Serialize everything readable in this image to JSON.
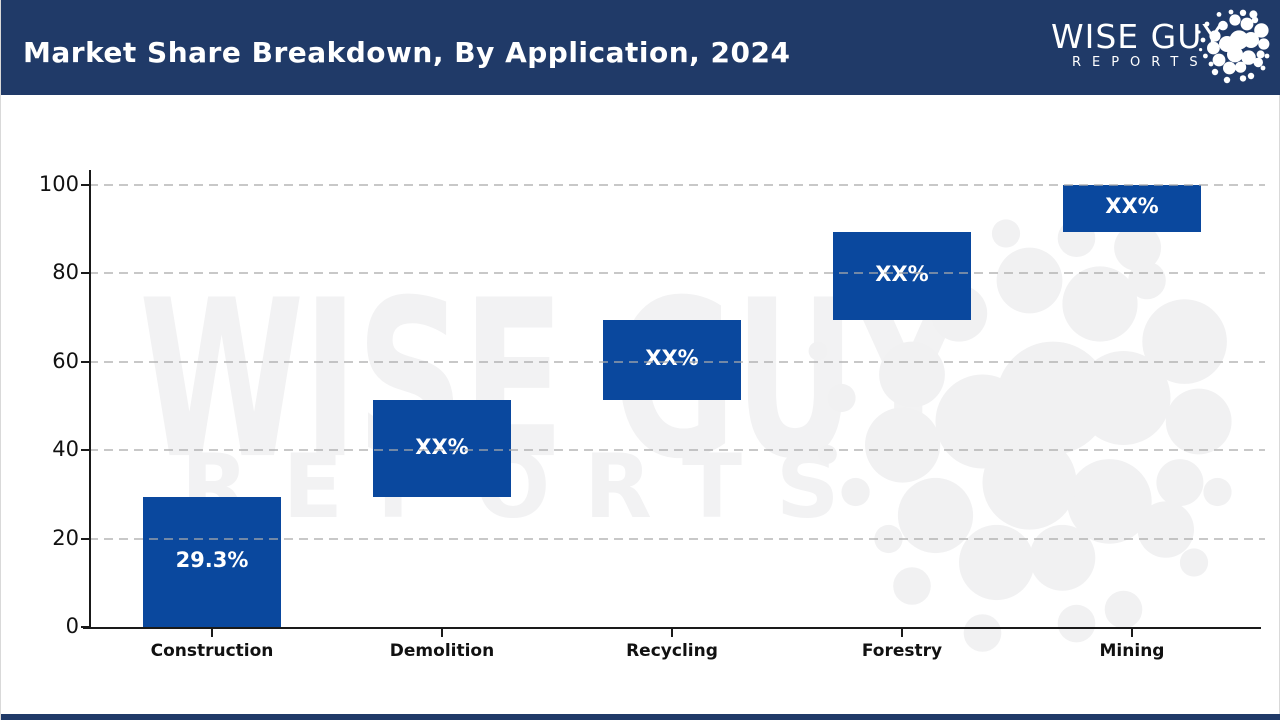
{
  "header": {
    "title": "Market Share Breakdown, By Application, 2024",
    "bg_color": "#203a68",
    "logo": {
      "line1": "WISE GUY",
      "line2": "REPORTS"
    }
  },
  "watermark": {
    "line1": "WISE GUY",
    "line2": "REPORTS"
  },
  "chart_data": {
    "type": "bar",
    "subtype": "waterfall",
    "title": "Market Share Breakdown, By Application, 2024",
    "categories": [
      "Construction",
      "Demolition",
      "Recycling",
      "Forestry",
      "Mining"
    ],
    "segments": [
      {
        "category": "Construction",
        "start": 0,
        "end": 29.3,
        "label": "29.3%"
      },
      {
        "category": "Demolition",
        "start": 29.3,
        "end": 51.4,
        "label": "XX%"
      },
      {
        "category": "Recycling",
        "start": 51.4,
        "end": 69.5,
        "label": "XX%"
      },
      {
        "category": "Forestry",
        "start": 69.5,
        "end": 89.4,
        "label": "XX%"
      },
      {
        "category": "Mining",
        "start": 89.4,
        "end": 100,
        "label": "XX%"
      }
    ],
    "yticks": [
      0,
      20,
      40,
      60,
      80,
      100
    ],
    "ylim": [
      0,
      105
    ],
    "xlabel": "",
    "ylabel": "",
    "bar_color": "#0a489e",
    "label_color": "#ffffff",
    "grid": "horizontal dashed, drawn over bars",
    "legend": "none"
  }
}
